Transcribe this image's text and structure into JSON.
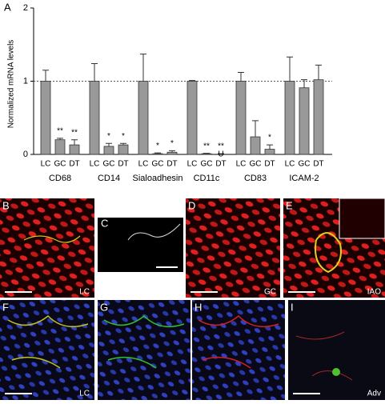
{
  "chart_data": {
    "type": "bar",
    "panel_label": "A",
    "ylabel": "Normalized mRNA levels",
    "categories": [
      "CD68",
      "CD14",
      "Sialoadhesin",
      "CD11c",
      "CD83",
      "ICAM-2"
    ],
    "series": [
      {
        "name": "LC",
        "color": "#999999",
        "values": [
          1,
          1,
          1,
          1,
          1,
          1
        ],
        "errors": [
          0.15,
          0.24,
          0.37,
          0.01,
          0.12,
          0.33
        ],
        "marks": [
          null,
          null,
          null,
          null,
          null,
          null
        ]
      },
      {
        "name": "GC",
        "color": "#999999",
        "values": [
          0.2,
          0.11,
          0.01,
          0.01,
          0.24,
          0.91
        ],
        "errors": [
          0.02,
          0.04,
          0.01,
          0.005,
          0.22,
          0.11
        ],
        "marks": [
          [
            "**"
          ],
          [
            "*"
          ],
          [
            "*"
          ],
          [
            "**"
          ],
          null,
          null
        ]
      },
      {
        "name": "DT",
        "color": "#999999",
        "values": [
          0.13,
          0.13,
          0.03,
          0,
          0.07,
          1.02
        ],
        "errors": [
          0.07,
          0.02,
          0.02,
          0.01,
          0.06,
          0.2
        ],
        "marks": [
          [
            "**"
          ],
          [
            "*"
          ],
          [
            "*"
          ],
          [
            "**",
            "U"
          ],
          [
            "*"
          ],
          null
        ]
      }
    ],
    "ylim": [
      0,
      2
    ],
    "yticks": [
      0,
      1,
      2
    ],
    "hline": 1
  },
  "panels": [
    {
      "letter": "B",
      "caption": "LC"
    },
    {
      "letter": "C"
    },
    {
      "letter": "D",
      "caption": "GC"
    },
    {
      "letter": "E",
      "caption": "IAO"
    },
    {
      "letter": "F",
      "caption": "LC"
    },
    {
      "letter": "G"
    },
    {
      "letter": "H"
    },
    {
      "letter": "I",
      "caption": "Adv"
    }
  ]
}
